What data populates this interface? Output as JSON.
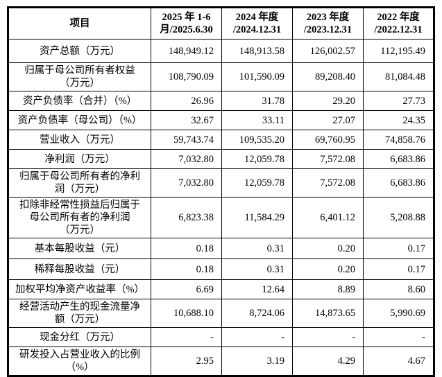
{
  "table": {
    "item_header": "项目",
    "period_headers": [
      {
        "line1": "2025 年 1-6",
        "line2": "月/2025.6.30"
      },
      {
        "line1": "2024 年度",
        "line2": "/2024.12.31"
      },
      {
        "line1": "2023 年度",
        "line2": "/2023.12.31"
      },
      {
        "line1": "2022 年度",
        "line2": "/2022.12.31"
      }
    ],
    "rows": [
      {
        "label": "资产总额（万元）",
        "values": [
          "148,949.12",
          "148,913.58",
          "126,002.57",
          "112,195.49"
        ]
      },
      {
        "label": "归属于母公司所有者权益\n（万元）",
        "values": [
          "108,790.09",
          "101,590.09",
          "89,208.40",
          "81,084.48"
        ]
      },
      {
        "label": "资产负债率（合并）（%）",
        "values": [
          "26.96",
          "31.78",
          "29.20",
          "27.73"
        ]
      },
      {
        "label": "资产负债率（母公司）（%）",
        "values": [
          "32.67",
          "33.11",
          "27.07",
          "24.35"
        ]
      },
      {
        "label": "营业收入（万元）",
        "values": [
          "59,743.74",
          "109,535.20",
          "69,760.95",
          "74,858.76"
        ]
      },
      {
        "label": "净利润（万元）",
        "values": [
          "7,032.80",
          "12,059.78",
          "7,572.08",
          "6,683.86"
        ]
      },
      {
        "label": "归属于母公司所有者的净利\n润（万元）",
        "values": [
          "7,032.80",
          "12,059.78",
          "7,572.08",
          "6,683.86"
        ]
      },
      {
        "label": "扣除非经常性损益后归属于\n母公司所有者的净利润\n（万元）",
        "values": [
          "6,823.38",
          "11,584.29",
          "6,401.12",
          "5,208.88"
        ]
      },
      {
        "label": "基本每股收益（元）",
        "values": [
          "0.18",
          "0.31",
          "0.20",
          "0.17"
        ]
      },
      {
        "label": "稀释每股收益（元）",
        "values": [
          "0.18",
          "0.31",
          "0.20",
          "0.17"
        ]
      },
      {
        "label": "加权平均净资产收益率（%）",
        "values": [
          "6.69",
          "12.64",
          "8.89",
          "8.60"
        ]
      },
      {
        "label": "经营活动产生的现金流量净\n额（万元）",
        "values": [
          "10,688.10",
          "8,724.06",
          "14,873.65",
          "5,990.69"
        ]
      },
      {
        "label": "现金分红（万元）",
        "values": [
          "-",
          "-",
          "-",
          "-"
        ]
      },
      {
        "label": "研发投入占营业收入的比例\n（%）",
        "values": [
          "2.95",
          "3.19",
          "4.29",
          "4.67"
        ]
      }
    ]
  }
}
